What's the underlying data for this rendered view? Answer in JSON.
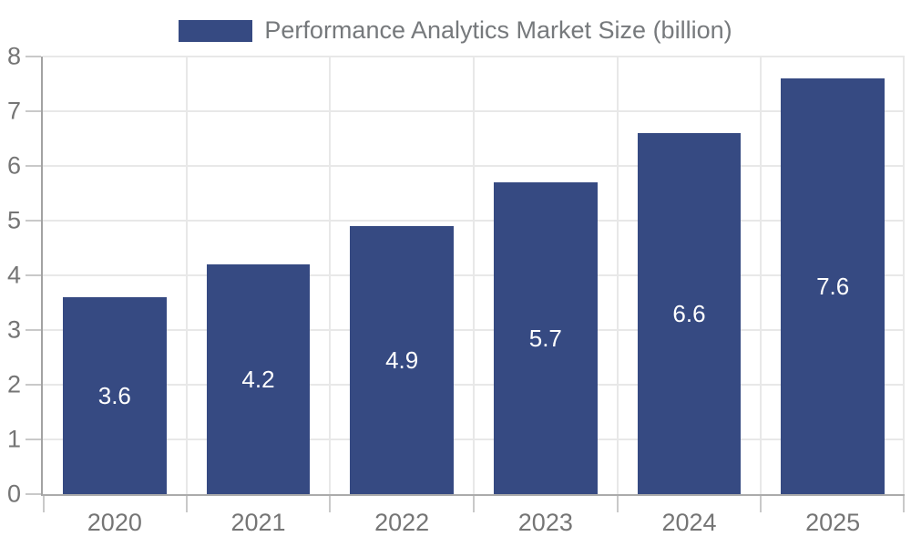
{
  "legend": {
    "label": "Performance Analytics Market Size (billion)"
  },
  "colors": {
    "bar": "#364a82",
    "axis_line": "#a2a2a2",
    "grid_line": "#e8e8e8",
    "tick_line": "#c9c9c9",
    "axis_label": "#757575",
    "legend_text": "#76797c",
    "value_label": "#ffffff",
    "background": "#ffffff"
  },
  "chart_data": {
    "type": "bar",
    "title": "Performance Analytics Market Size (billion)",
    "categories": [
      "2020",
      "2021",
      "2022",
      "2023",
      "2024",
      "2025"
    ],
    "values": [
      3.6,
      4.2,
      4.9,
      5.7,
      6.6,
      7.6
    ],
    "series": [
      {
        "name": "Performance Analytics Market Size (billion)",
        "values": [
          3.6,
          4.2,
          4.9,
          5.7,
          6.6,
          7.6
        ]
      }
    ],
    "xlabel": "",
    "ylabel": "",
    "ylim": [
      0,
      8
    ],
    "ytick_step": 1,
    "yticks": [
      0,
      1,
      2,
      3,
      4,
      5,
      6,
      7,
      8
    ],
    "grid": true,
    "vertical_band_gridlines": true,
    "legend_position": "top-center",
    "bar_width_fraction": 0.72,
    "value_labels": "inside-center"
  }
}
